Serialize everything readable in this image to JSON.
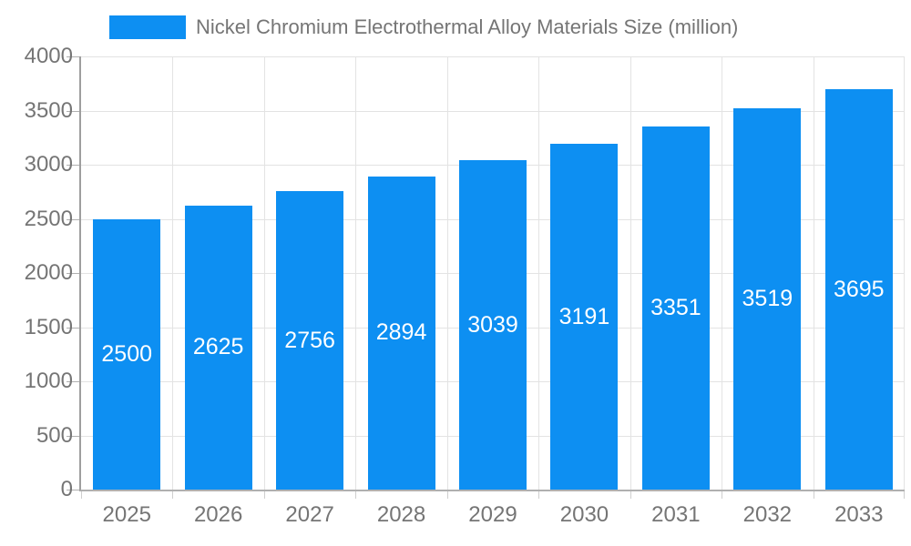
{
  "chart_data": {
    "type": "bar",
    "title": "Nickel Chromium Electrothermal Alloy Materials Size (million)",
    "legend": [
      "Nickel Chromium Electrothermal Alloy Materials Size (million)"
    ],
    "legend_position": "top",
    "categories": [
      "2025",
      "2026",
      "2027",
      "2028",
      "2029",
      "2030",
      "2031",
      "2032",
      "2033"
    ],
    "values": [
      2500,
      2625,
      2756,
      2894,
      3039,
      3191,
      3351,
      3519,
      3695
    ],
    "xlabel": "",
    "ylabel": "",
    "ylim": [
      0,
      4000
    ],
    "yticks": [
      0,
      500,
      1000,
      1500,
      2000,
      2500,
      3000,
      3500,
      4000
    ],
    "grid": true,
    "bar_labels_inside": true,
    "colors": {
      "bar": "#0d8ff2",
      "bar_label": "#ffffff",
      "axis_text": "#757575",
      "legend_text": "#757575",
      "gridline": "#e3e3e3",
      "axis_line": "#a6a6a6",
      "background": "#ffffff"
    }
  }
}
